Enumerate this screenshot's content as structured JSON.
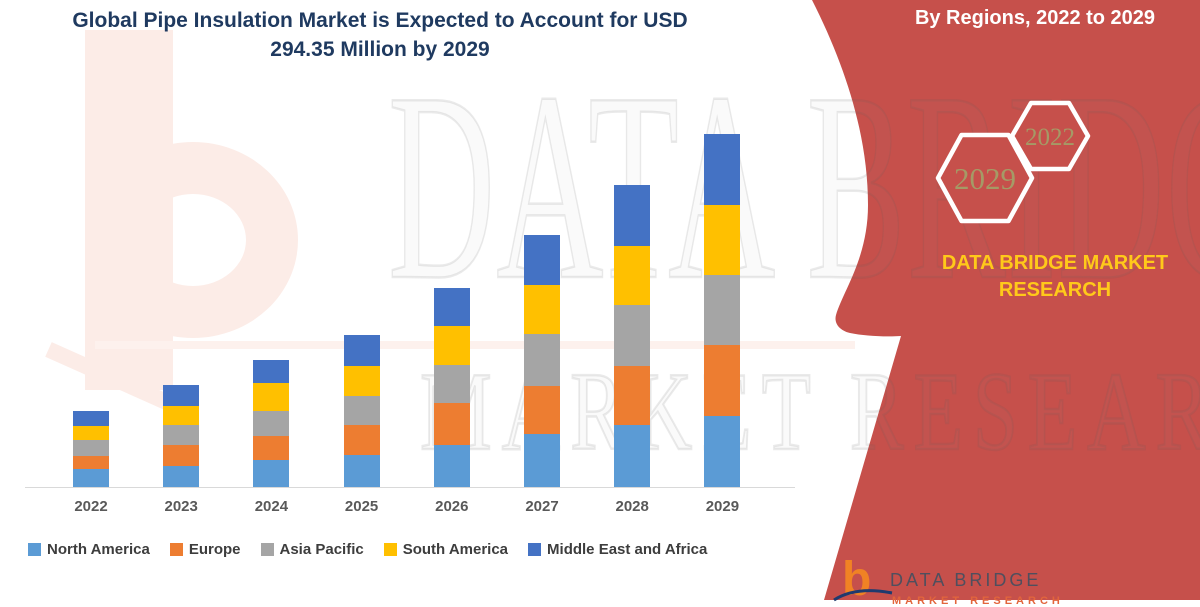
{
  "title": {
    "line1": "Global Pipe Insulation Market is Expected to Account for USD",
    "line2": "294.35 Million by 2029"
  },
  "right_panel": {
    "heading": "By Regions, 2022 to 2029",
    "hexagons": [
      {
        "label": "2029"
      },
      {
        "label": "2022"
      }
    ],
    "brand_name": "DATA BRIDGE MARKET RESEARCH",
    "background_color": "#C6504B",
    "hexagon_text_color": "#A59A66",
    "brand_text_color": "#FFC91A"
  },
  "watermark": {
    "monogram": "b",
    "line1": "DATA BRIDGE",
    "line2": "MARKET RESEARCH"
  },
  "footer_logo": {
    "monogram": "b",
    "name": "DATA BRIDGE",
    "subtitle": "MARKET RESEARCH"
  },
  "chart_data": {
    "type": "bar",
    "stacked": true,
    "title": "Global Pipe Insulation Market is Expected to Account for USD 294.35 Million by 2029",
    "unit": "USD Million",
    "categories": [
      "2022",
      "2023",
      "2024",
      "2025",
      "2026",
      "2027",
      "2028",
      "2029"
    ],
    "series": [
      {
        "name": "North America",
        "color": "#5B9BD5",
        "values": [
          15.0,
          17.8,
          22.8,
          27.0,
          35.3,
          44.3,
          51.5,
          59.3
        ]
      },
      {
        "name": "Europe",
        "color": "#ED7D31",
        "values": [
          11.1,
          17.5,
          20.0,
          25.1,
          34.8,
          40.3,
          49.3,
          59.1
        ]
      },
      {
        "name": "Asia Pacific",
        "color": "#A5A5A5",
        "values": [
          12.8,
          16.1,
          20.3,
          23.6,
          32.0,
          42.6,
          50.7,
          58.5
        ]
      },
      {
        "name": "South America",
        "color": "#FFC000",
        "values": [
          11.7,
          16.5,
          23.7,
          25.1,
          32.0,
          40.9,
          49.5,
          58.5
        ]
      },
      {
        "name": "Middle East and Africa",
        "color": "#4472C4",
        "values": [
          13.1,
          17.5,
          18.9,
          25.9,
          32.0,
          42.0,
          51.0,
          58.95
        ]
      }
    ],
    "totals": [
      63.7,
      85.4,
      105.7,
      126.7,
      166.1,
      210.1,
      252.0,
      294.35
    ],
    "ylim": [
      0,
      300
    ],
    "grid": false,
    "legend_position": "bottom"
  }
}
